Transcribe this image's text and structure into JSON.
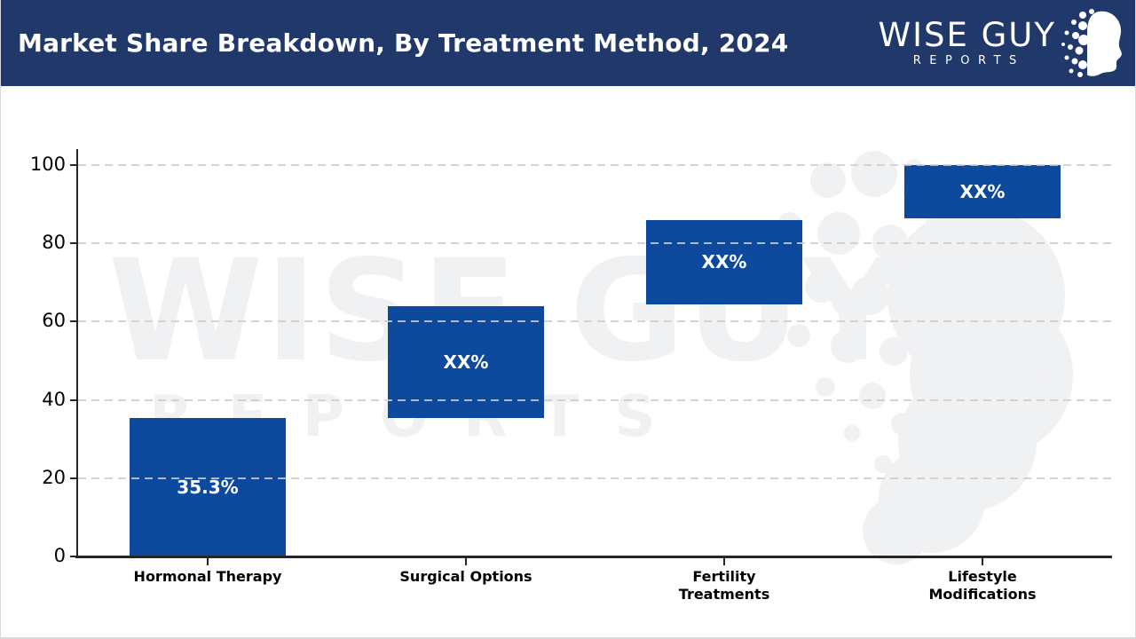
{
  "header": {
    "title": "Market Share Breakdown, By Treatment Method, 2024",
    "logo": {
      "brand": "WISE GUY",
      "sub": "REPORTS"
    }
  },
  "watermark": {
    "brand": "WISE GUY",
    "sub": "REPORTS"
  },
  "colors": {
    "header_bg": "#21386b",
    "bar": "#0d4a9e",
    "bar_label": "#ffffff",
    "grid": "#cdcdcd",
    "axis": "#262626",
    "watermark": "#f0f1f3",
    "title_text": "#ffffff"
  },
  "chart_data": {
    "type": "bar",
    "subtype": "waterfall",
    "title": "Market Share Breakdown, By Treatment Method, 2024",
    "categories": [
      "Hormonal Therapy",
      "Surgical Options",
      "Fertility\nTreatments",
      "Lifestyle\nModifications"
    ],
    "segments": [
      {
        "category": "Hormonal Therapy",
        "start": 0,
        "end": 35.3,
        "label": "35.3%"
      },
      {
        "category": "Surgical Options",
        "start": 35.3,
        "end": 64,
        "label": "XX%"
      },
      {
        "category": "Fertility Treatments",
        "start": 64.5,
        "end": 86,
        "label": "XX%"
      },
      {
        "category": "Lifestyle Modifications",
        "start": 86.5,
        "end": 100,
        "label": "XX%"
      }
    ],
    "xlabel": "",
    "ylabel": "",
    "ylim": [
      0,
      100
    ],
    "yticks": [
      0,
      20,
      40,
      60,
      80,
      100
    ],
    "grid": "horizontal-dashed",
    "legend": null
  }
}
